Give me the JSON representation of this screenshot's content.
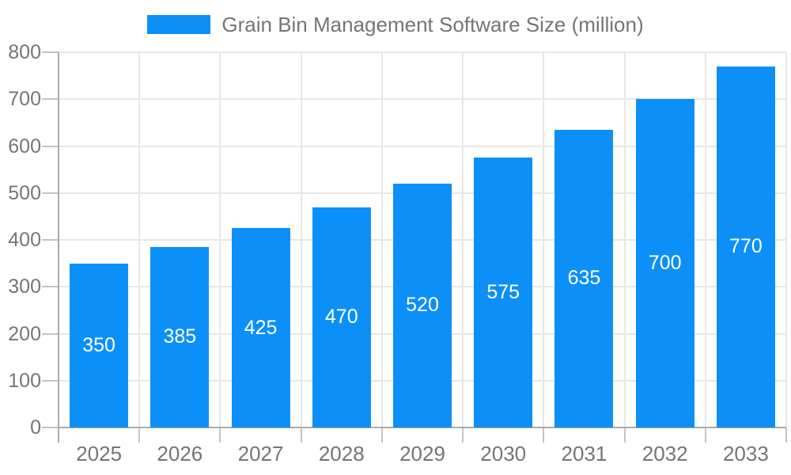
{
  "chart_data": {
    "type": "bar",
    "title": "Grain Bin Management Software Size (million)",
    "categories": [
      "2025",
      "2026",
      "2027",
      "2028",
      "2029",
      "2030",
      "2031",
      "2032",
      "2033"
    ],
    "values": [
      350,
      385,
      425,
      470,
      520,
      575,
      635,
      700,
      770
    ],
    "value_labels": [
      "350",
      "385",
      "425",
      "470",
      "520",
      "575",
      "635",
      "700",
      "770"
    ],
    "xlabel": "",
    "ylabel": "",
    "ylim": [
      0,
      800
    ],
    "yticks": [
      0,
      100,
      200,
      300,
      400,
      500,
      600,
      700,
      800
    ],
    "grid": true,
    "legend_position": "top-center",
    "colors": {
      "bar": "#0c90f8",
      "value_label": "#ffffff",
      "axis_text": "#757575",
      "gridline": "#e7e7e7",
      "tick": "#c3c3c3",
      "axis_line": "#ababab",
      "background": "#ffffff"
    }
  }
}
